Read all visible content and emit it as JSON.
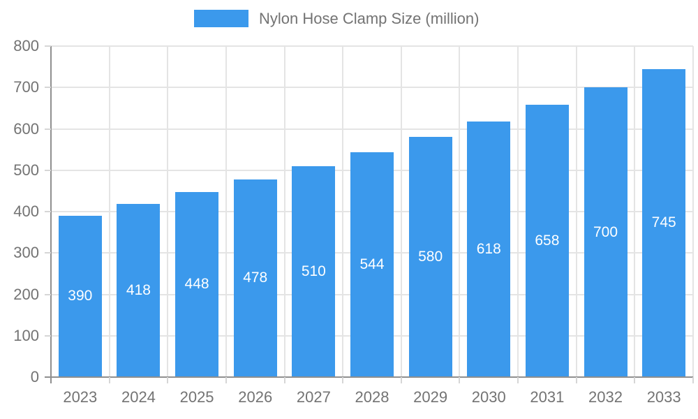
{
  "legend": {
    "label": "Nylon Hose Clamp Size (million)"
  },
  "chart_data": {
    "type": "bar",
    "title": "",
    "xlabel": "",
    "ylabel": "",
    "categories": [
      "2023",
      "2024",
      "2025",
      "2026",
      "2027",
      "2028",
      "2029",
      "2030",
      "2031",
      "2032",
      "2033"
    ],
    "series": [
      {
        "name": "Nylon Hose Clamp Size (million)",
        "values": [
          390,
          418,
          448,
          478,
          510,
          544,
          580,
          618,
          658,
          700,
          745
        ]
      }
    ],
    "bar_labels_shown": true,
    "bar_label_position": "inside-center",
    "ylim": [
      0,
      800
    ],
    "y_ticks": [
      0,
      100,
      200,
      300,
      400,
      500,
      600,
      700,
      800
    ],
    "grid": true,
    "legend_position": "top",
    "colors": {
      "bar": "#3b99ec",
      "axis_text": "#737373",
      "bar_label_text": "#ffffff",
      "grid_line": "#e4e4e4",
      "axis_line": "#8f8f8f",
      "tick_line": "#d6d6d6",
      "background": "#ffffff"
    }
  }
}
